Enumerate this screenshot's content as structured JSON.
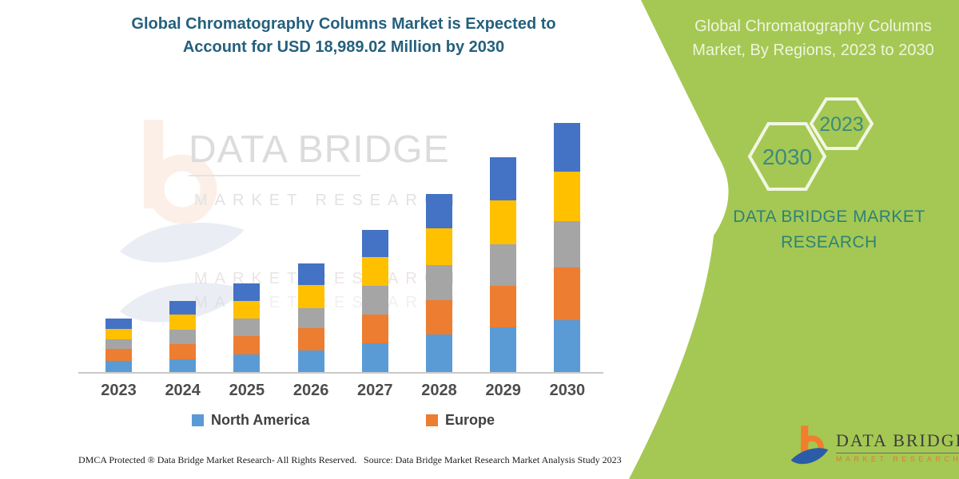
{
  "header": {
    "title_line1": "Global Chromatography Columns Market is Expected to",
    "title_line2": "Account for USD 18,989.02 Million by 2030"
  },
  "side_panel": {
    "bg_color": "#a5c854",
    "outline_color": "#f1f7e3",
    "title_line1": "Global Chromatography Columns",
    "title_line2": "Market, By Regions, 2023 to 2030",
    "hex_2030_label": "2030",
    "hex_2023_label": "2023",
    "brand_line1": "DATA BRIDGE MARKET",
    "brand_line2": "RESEARCH"
  },
  "watermark": {
    "brand": "DATA BRIDGE",
    "tagline": "MARKET RESEARCH",
    "ghost1": "MARKET RESEARCH",
    "ghost2": "MARKET RESEARCH"
  },
  "chart_data": {
    "type": "bar",
    "stacked": true,
    "title": "Global Chromatography Columns Market, By Regions, 2023 to 2030",
    "unit": "USD Million",
    "categories": [
      "2023",
      "2024",
      "2025",
      "2026",
      "2027",
      "2028",
      "2029",
      "2030"
    ],
    "series": [
      {
        "name": "North America",
        "color": "#5B9BD5",
        "values": [
          852,
          1004,
          1369,
          1674,
          2221,
          2860,
          3408,
          3927
        ]
      },
      {
        "name": "Europe",
        "color": "#ED7D31",
        "values": [
          913,
          1156,
          1369,
          1674,
          2191,
          2617,
          3165,
          4047
        ]
      },
      {
        "name": "Unlabeled (gray)",
        "color": "#A5A5A5",
        "values": [
          730,
          1065,
          1369,
          1552,
          2161,
          2678,
          3165,
          3560
        ]
      },
      {
        "name": "Unlabeled (yellow)",
        "color": "#FFC000",
        "values": [
          791,
          1156,
          1309,
          1734,
          2191,
          2800,
          3347,
          3773
        ]
      },
      {
        "name": "Unlabeled (blue)",
        "color": "#4472C4",
        "values": [
          791,
          1035,
          1369,
          1643,
          2100,
          2647,
          3286,
          3682
        ]
      }
    ],
    "totals_estimated": [
      4077,
      5416,
      6785,
      8277,
      10864,
      13602,
      16371,
      18989
    ],
    "stated_2030_total": 18989.02,
    "ylim": [
      0,
      18989.02
    ],
    "gridlines": false,
    "y_axis_visible": false,
    "legend_position": "bottom",
    "legend_visible_entries": [
      "North America",
      "Europe"
    ]
  },
  "legend": {
    "items": [
      {
        "label": "North America",
        "color": "#5B9BD5"
      },
      {
        "label": "Europe",
        "color": "#ED7D31"
      }
    ]
  },
  "logo_badge": {
    "name": "DATA BRIDGE",
    "tagline": "MARKET RESEARCH"
  },
  "footer": {
    "dmca": "DMCA Protected ® Data Bridge Market Research-  All Rights Reserved.",
    "source": "Source: Data Bridge Market Research  Market Analysis Study 2023"
  }
}
